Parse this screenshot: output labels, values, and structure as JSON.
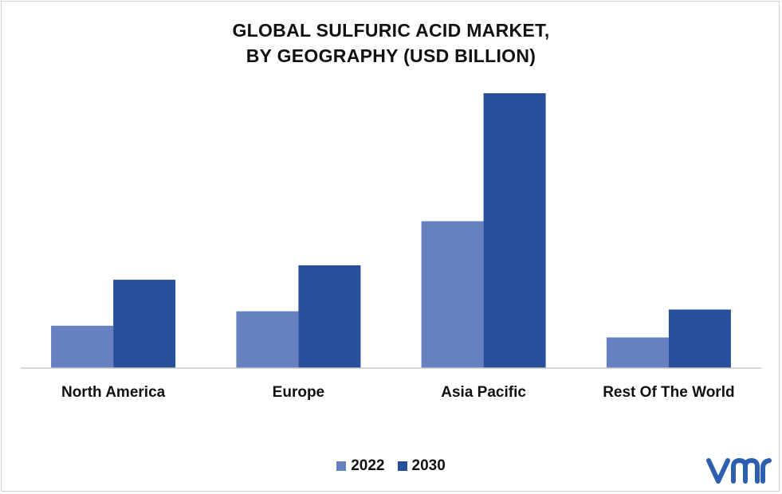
{
  "chart_data": {
    "type": "bar",
    "title_lines": [
      "GLOBAL SULFURIC ACID MARKET,",
      "BY GEOGRAPHY (USD BILLION)"
    ],
    "categories": [
      "North America",
      "Europe",
      "Asia Pacific",
      "Rest Of The World"
    ],
    "series": [
      {
        "name": "2022",
        "color": "#6680c0",
        "values": [
          4.7,
          6.3,
          16.3,
          3.4
        ]
      },
      {
        "name": "2030",
        "color": "#284f9b",
        "values": [
          9.8,
          11.4,
          30.5,
          6.5
        ]
      }
    ],
    "ylim": [
      0,
      32
    ],
    "grid": false,
    "legend_position": "bottom-center",
    "axis_color": "#c8c8c8"
  },
  "brand": {
    "logo_icon": "vmr-logo-icon",
    "logo_color": "#2d5fb0"
  }
}
